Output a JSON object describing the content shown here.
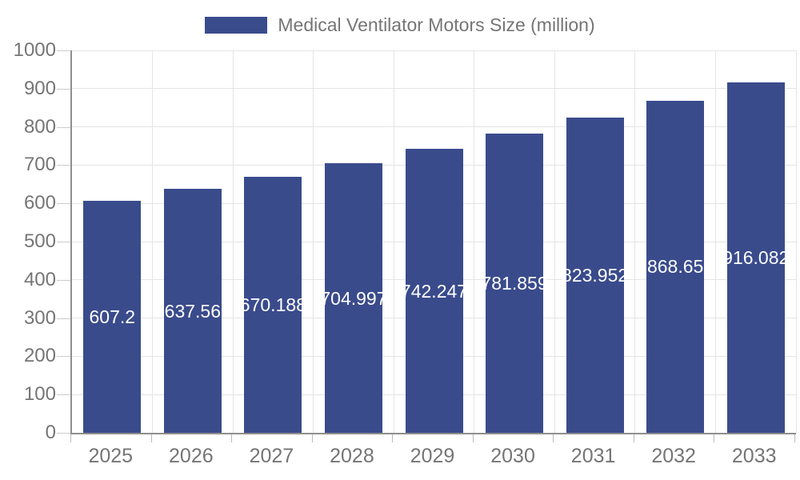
{
  "legend": {
    "label": "Medical Ventilator Motors Size (million)"
  },
  "colors": {
    "bar": "#3A4B8C",
    "bar_label": "#FFFFFF",
    "axis_label": "#757575",
    "axis_line": "#8F8F8F",
    "grid_line": "#E4E4E4",
    "background": "#FFFFFF"
  },
  "chart_data": {
    "type": "bar",
    "title": "Medical Ventilator Motors Size (million)",
    "series_name": "Medical Ventilator Motors Size (million)",
    "categories": [
      "2025",
      "2026",
      "2027",
      "2028",
      "2029",
      "2030",
      "2031",
      "2032",
      "2033"
    ],
    "values": [
      607.2,
      637.56,
      670.188,
      704.997,
      742.247,
      781.859,
      823.952,
      868.65,
      916.082
    ],
    "value_labels": [
      "607.2",
      "637.56",
      "670.188",
      "704.997",
      "742.247",
      "781.859",
      "823.952",
      "868.65",
      "916.082"
    ],
    "xlabel": "",
    "ylabel": "",
    "ylim": [
      0,
      1000
    ],
    "y_ticks": [
      0,
      100,
      200,
      300,
      400,
      500,
      600,
      700,
      800,
      900,
      1000
    ],
    "grid": true,
    "legend_position": "top"
  }
}
